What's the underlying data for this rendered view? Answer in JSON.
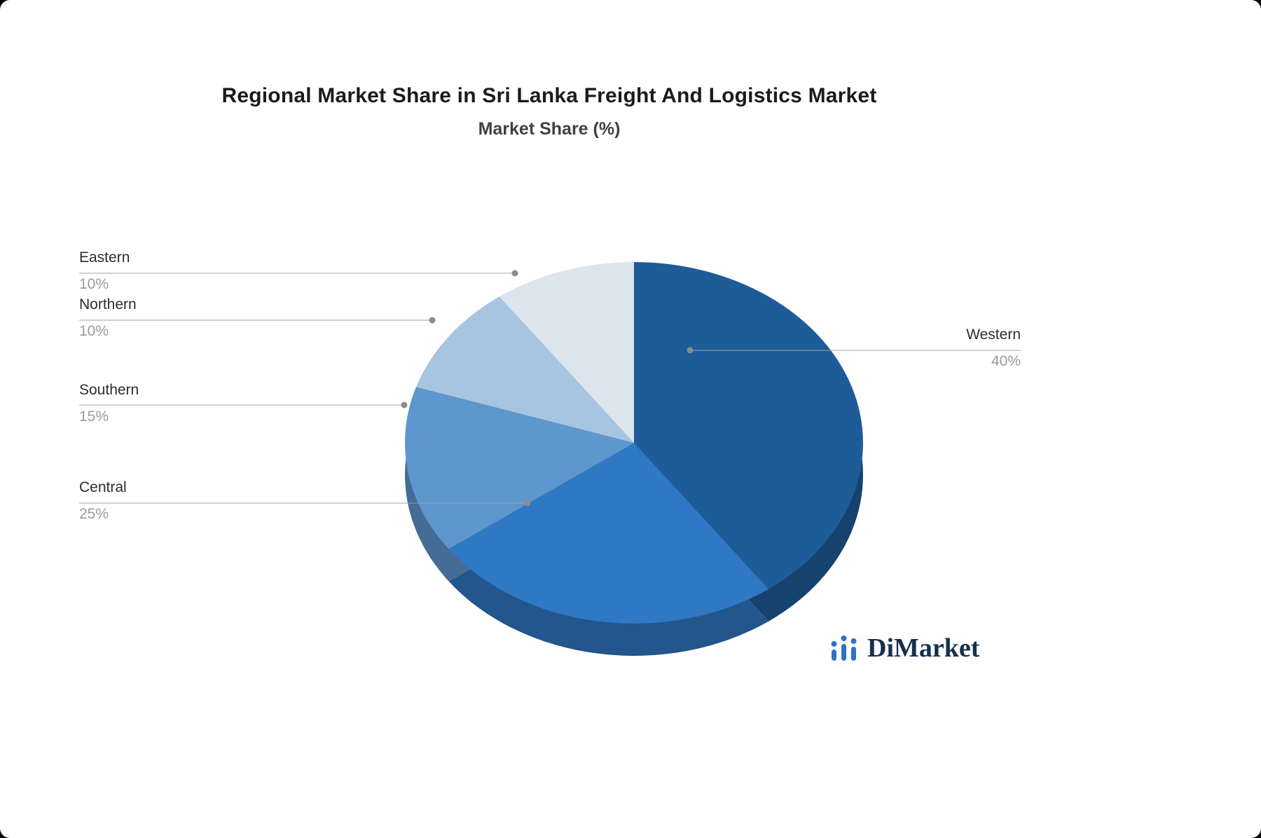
{
  "chart_data": {
    "type": "pie",
    "style": "3d",
    "title": "Regional Market Share in Sri Lanka Freight And Logistics Market",
    "subtitle": "Market Share (%)",
    "unit": "%",
    "direction": "clockwise",
    "start_angle_deg": 0,
    "legend": "none",
    "labels": [
      "Western",
      "Central",
      "Southern",
      "Northern",
      "Eastern"
    ],
    "values": [
      40,
      25,
      15,
      10,
      10
    ],
    "display_values": [
      "40%",
      "25%",
      "15%",
      "10%",
      "10%"
    ],
    "colors": [
      "#1e5c99",
      "#2f78c3",
      "#5e96ce",
      "#a7c4e0",
      "#dce4ee"
    ],
    "label_line_color": "#a0a0a0",
    "label_dot_color": "#8c8c8c"
  },
  "branding": {
    "logo_text": "DiMarket",
    "logo_icon": "bar-chart-icon",
    "logo_text_color": "#16304d",
    "logo_icon_color": "#2f72c4"
  }
}
